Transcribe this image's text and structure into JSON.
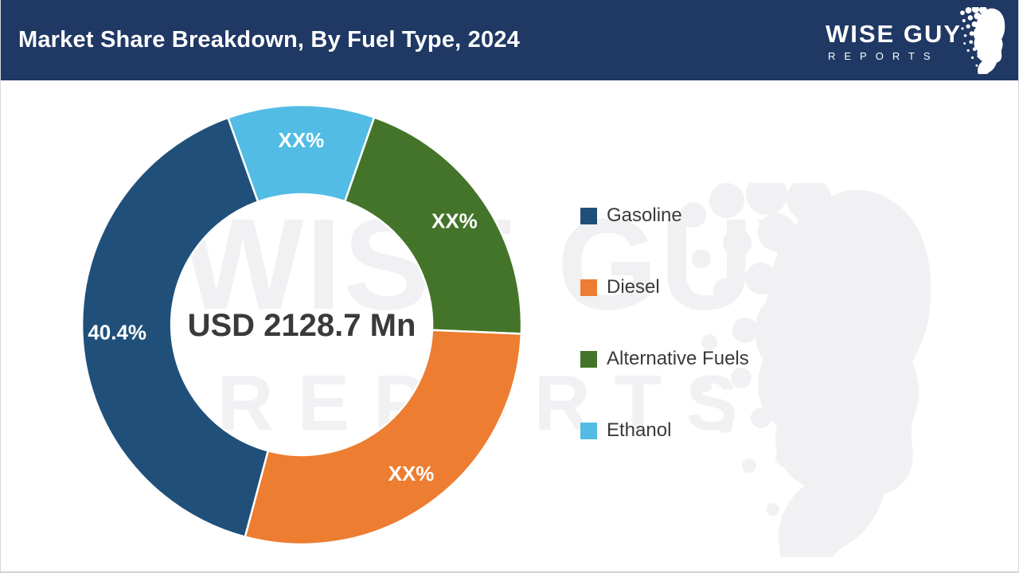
{
  "header": {
    "title": "Market Share Breakdown, By Fuel Type, 2024",
    "logo": {
      "wordmark": "WISE GUY",
      "subtext": "REPORTS"
    }
  },
  "watermark": {
    "line1": "WISE GUY",
    "line2": "REPORTS"
  },
  "colors": {
    "header_bg": "#1f3864",
    "gasoline": "#20507a",
    "diesel": "#ed7d31",
    "alternative_fuels": "#447429",
    "ethanol": "#52bce5",
    "center_text": "#3a3a3a",
    "watermark": "#f1f1f4"
  },
  "chart_data": {
    "type": "pie",
    "subtype": "donut",
    "title": "Market Share Breakdown, By Fuel Type, 2024",
    "center_label": "USD 2128.7 Mn",
    "legend_position": "right",
    "start_angle_deg": -19.6,
    "segments": [
      {
        "label": "Gasoline",
        "display_value": "40.4%",
        "value_pct": 40.4,
        "color": "#20507a"
      },
      {
        "label": "Diesel",
        "display_value": "XX%",
        "value_pct": 28.5,
        "color": "#ed7d31"
      },
      {
        "label": "Alternative Fuels",
        "display_value": "XX%",
        "value_pct": 20.3,
        "color": "#447429"
      },
      {
        "label": "Ethanol",
        "display_value": "XX%",
        "value_pct": 10.8,
        "color": "#52bce5"
      }
    ],
    "note": "Only Gasoline's share (40.4%) is shown numerically; other slices are masked as XX% in the image, value_pct for them is estimated from arc geometry."
  }
}
